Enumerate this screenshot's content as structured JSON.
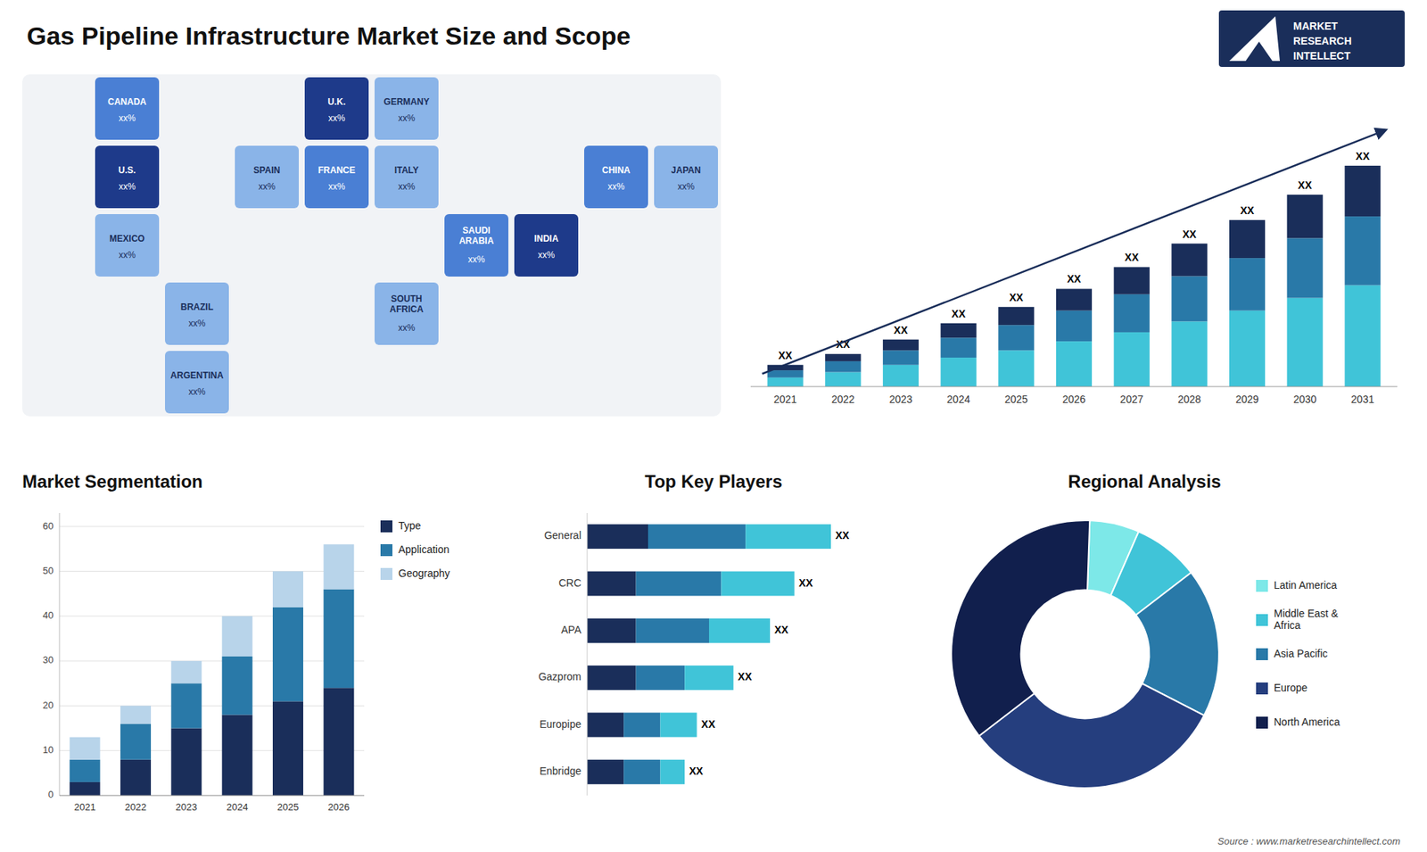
{
  "chart_data": [
    {
      "type": "map",
      "title": "Gas Pipeline Infrastructure Market Size and Scope",
      "categories": [
        "CANADA",
        "U.S.",
        "MEXICO",
        "BRAZIL",
        "ARGENTINA",
        "U.K.",
        "FRANCE",
        "SPAIN",
        "GERMANY",
        "ITALY",
        "SAUDI\nARABIA",
        "SOUTH\nAFRICA",
        "CHINA",
        "INDIA",
        "JAPAN"
      ],
      "colors": [
        "#4a7fd4",
        "#1e3a8a",
        "#8ab4e8",
        "#8ab4e8",
        "#8ab4e8",
        "#1e3a8a",
        "#4a7fd4",
        "#8ab4e8",
        "#8ab4e8",
        "#8ab4e8",
        "#4a7fd4",
        "#8ab4e8",
        "#4a7fd4",
        "#1e3a8a",
        "#8ab4e8"
      ],
      "annotations": [
        "xx%",
        "xx%",
        "xx%",
        "xx%",
        "xx%",
        "xx%",
        "xx%",
        "xx%",
        "xx%",
        "xx%",
        "xx%",
        "xx%",
        "xx%",
        "xx%",
        "xx%",
        "Source : www.marketresearchintellect.com",
        "MARKET",
        "RESEARCH",
        "INTELLECT"
      ]
    },
    {
      "type": "bar",
      "categories": [
        "2021",
        "2022",
        "2023",
        "2024",
        "2025",
        "2026",
        "2027",
        "2028",
        "2029",
        "2030",
        "2031"
      ],
      "series": [
        {
          "color": "#40c4d8",
          "values": [
            5,
            8,
            12,
            16,
            20,
            25,
            30,
            36,
            42,
            49,
            56
          ]
        },
        {
          "color": "#2979a8",
          "values": [
            4,
            6,
            8,
            11,
            14,
            17,
            21,
            25,
            29,
            33,
            38
          ]
        },
        {
          "color": "#1a2e5a",
          "values": [
            3,
            4,
            6,
            8,
            10,
            12,
            15,
            18,
            21,
            24,
            28
          ]
        }
      ],
      "stacked": true,
      "ylim": [
        0,
        168.36
      ],
      "tick_labels": "x",
      "grid": false,
      "annotations": [
        "XX",
        "XX",
        "XX",
        "XX",
        "XX",
        "XX",
        "XX",
        "XX",
        "XX",
        "XX",
        "XX"
      ]
    },
    {
      "type": "bar",
      "title": "Market Segmentation",
      "categories": [
        "2021",
        "2022",
        "2023",
        "2024",
        "2025",
        "2026"
      ],
      "series": [
        {
          "name": "Type",
          "color": "#1a2e5a",
          "values": [
            3,
            8,
            15,
            18,
            21,
            24
          ]
        },
        {
          "name": "Application",
          "color": "#2979a8",
          "values": [
            5,
            8,
            10,
            13,
            21,
            22
          ]
        },
        {
          "name": "Geography",
          "color": "#b8d4ea",
          "values": [
            5,
            4,
            5,
            9,
            8,
            10
          ]
        }
      ],
      "stacked": true,
      "ylim": [
        0,
        63
      ],
      "yticks": [
        0,
        10,
        20,
        30,
        40,
        50,
        60
      ],
      "grid": true,
      "legend": "right"
    },
    {
      "type": "bar",
      "title": "Top Key Players",
      "orientation": "horizontal",
      "categories": [
        "General",
        "CRC",
        "APA",
        "Gazprom",
        "Europipe",
        "Enbridge"
      ],
      "series": [
        {
          "color": "#1a2e5a",
          "values": [
            5,
            4,
            4,
            4,
            3,
            3
          ]
        },
        {
          "color": "#2979a8",
          "values": [
            8,
            7,
            6,
            4,
            3,
            3
          ]
        },
        {
          "color": "#40c4d8",
          "values": [
            7,
            6,
            5,
            4,
            3,
            2
          ]
        }
      ],
      "stacked": true,
      "xlim": [
        0,
        25
      ],
      "tick_labels": "y",
      "grid": false,
      "annotations": [
        "XX",
        "XX",
        "XX",
        "XX",
        "XX",
        "XX"
      ]
    },
    {
      "type": "pie",
      "title": "Regional Analysis",
      "categories": [
        "Latin America",
        "Middle East &\nAfrica",
        "Asia Pacific",
        "Europe",
        "North America"
      ],
      "values": [
        6,
        8,
        18,
        32,
        36
      ],
      "colors": [
        "#7de8e8",
        "#40c4d8",
        "#2979a8",
        "#253e7e",
        "#111f4d"
      ],
      "legend": "right"
    }
  ]
}
